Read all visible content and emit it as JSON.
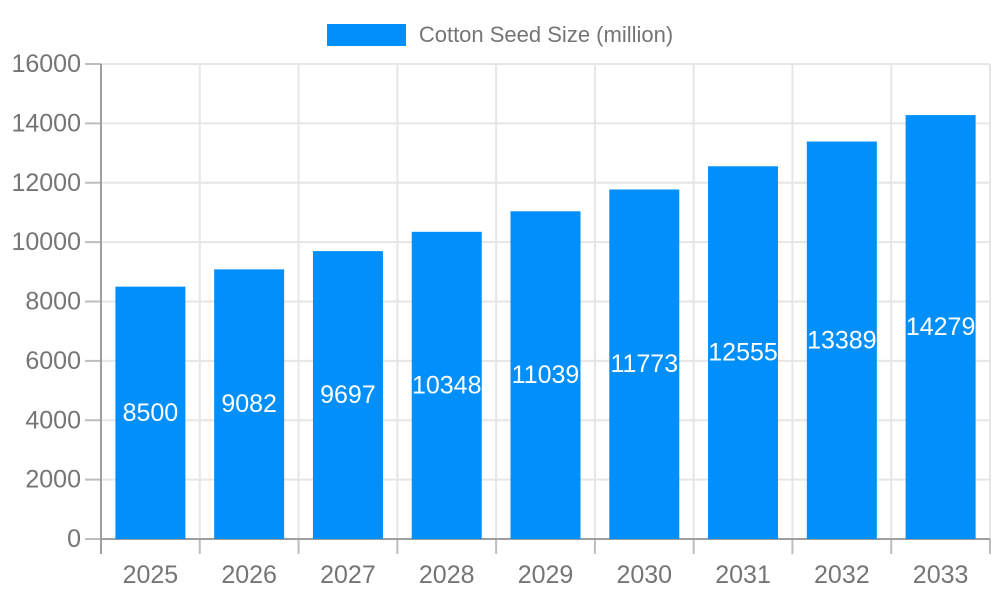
{
  "legend": {
    "items": [
      {
        "label": "Cotton Seed Size (million)",
        "color": "#008FFB"
      }
    ]
  },
  "colors": {
    "bar": "#008FFB",
    "grid_line": "#e6e6e6",
    "axis_line": "#9e9e9e",
    "tick_line": "#bdbdbd",
    "axis_text": "#757575",
    "value_text": "#ffffff",
    "background": "#ffffff"
  },
  "chart_data": {
    "type": "bar",
    "title": "",
    "categories": [
      "2025",
      "2026",
      "2027",
      "2028",
      "2029",
      "2030",
      "2031",
      "2032",
      "2033"
    ],
    "series": [
      {
        "name": "Cotton Seed Size (million)",
        "values": [
          8500,
          9082,
          9697,
          10348,
          11039,
          11773,
          12555,
          13389,
          14279
        ]
      }
    ],
    "value_labels": [
      8500,
      9082,
      9697,
      10348,
      11039,
      11773,
      12555,
      13389,
      14279
    ],
    "value_label_position": "inside-center",
    "xlabel": "",
    "ylabel": "",
    "ylim": [
      0,
      16000
    ],
    "ytick_step": 2000,
    "ytick_labels": [
      "0",
      "2000",
      "4000",
      "6000",
      "8000",
      "10000",
      "12000",
      "14000",
      "16000"
    ],
    "grid": true,
    "legend_position": "top"
  }
}
